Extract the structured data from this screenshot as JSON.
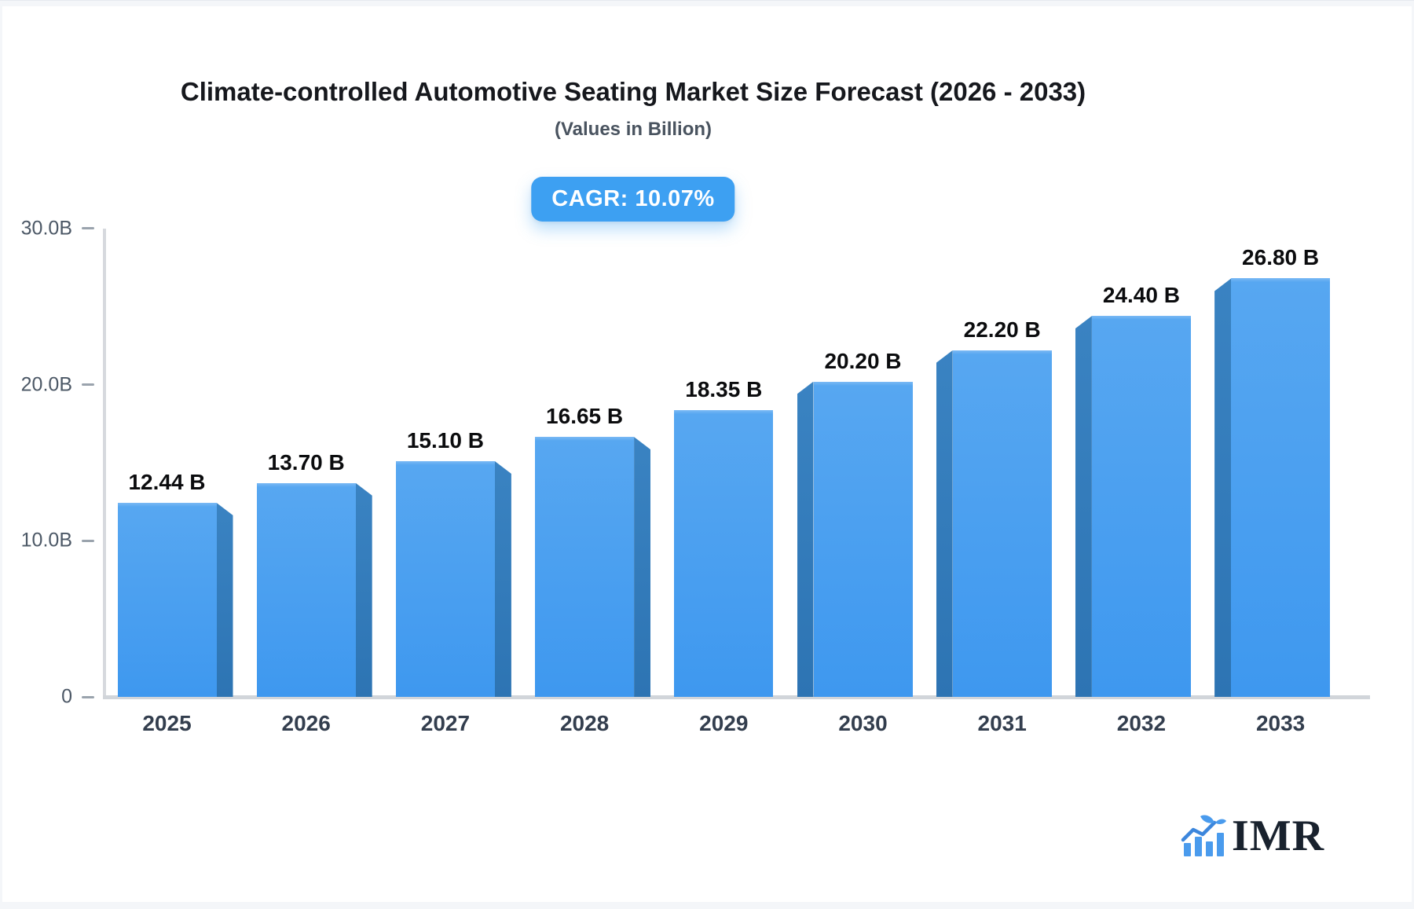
{
  "title": "Climate-controlled Automotive Seating Market Size Forecast (2026 - 2033)",
  "subtitle": "(Values in Billion)",
  "cagr_label": "CAGR: 10.07%",
  "logo": {
    "text": "IMR"
  },
  "colors": {
    "accent_blue": "#3da0f2",
    "bar_highlight": "#7ab9f4",
    "bar_top": "#57a7f1",
    "bar_bottom": "#3e98ef",
    "bar_side_top": "#3a83c2",
    "bar_side_bottom": "#2d74b3",
    "axis_line": "#d6d9de",
    "baseline": "#d1d5da",
    "tick_dash": "#9aa3ad",
    "y_label_text": "#4c5866",
    "x_label_text": "#333e4e",
    "value_label_text": "#0b0c0e",
    "logo_navy": "#19222e",
    "logo_blue": "#4a9bed"
  },
  "chart_data": {
    "type": "bar",
    "title": "Climate-controlled Automotive Seating Market Size Forecast (2026 - 2033)",
    "subtitle": "(Values in Billion)",
    "annotation": "CAGR: 10.07%",
    "categories": [
      "2025",
      "2026",
      "2027",
      "2028",
      "2029",
      "2030",
      "2031",
      "2032",
      "2033"
    ],
    "values": [
      12.44,
      13.7,
      15.1,
      16.65,
      18.35,
      20.2,
      22.2,
      24.4,
      26.8
    ],
    "bar_labels": [
      "12.44 B",
      "13.70 B",
      "15.10 B",
      "16.65 B",
      "18.35 B",
      "20.20 B",
      "22.20 B",
      "24.40 B",
      "26.80 B"
    ],
    "y_ticks": [
      {
        "label": "30.0B",
        "value": 30
      },
      {
        "label": "20.0B",
        "value": 20
      },
      {
        "label": "10.0B",
        "value": 10
      },
      {
        "label": "0",
        "value": 0
      }
    ],
    "ylim": [
      0,
      30
    ],
    "xlabel": "",
    "ylabel": "",
    "grid": false,
    "legend": false,
    "unit": "Billion"
  }
}
